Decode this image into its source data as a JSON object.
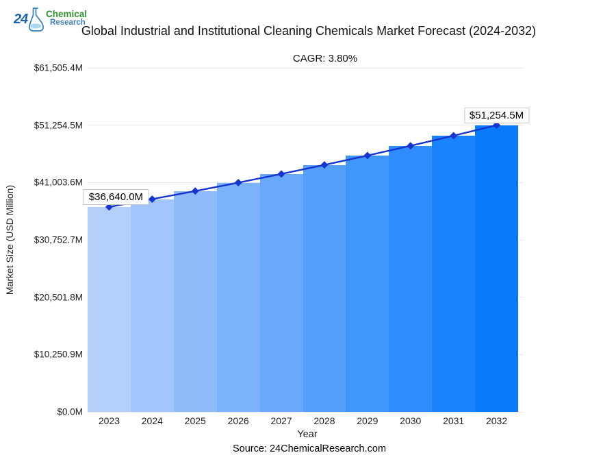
{
  "logo": {
    "number": "24",
    "line1": "Chemical",
    "line2": "Research"
  },
  "header": {
    "title": "Global Industrial and Institutional Cleaning Chemicals Market Forecast (2024-2032)",
    "subtitle": "CAGR: 3.80%"
  },
  "footer": {
    "source": "Source: 24ChemicalResearch.com"
  },
  "chart_data": {
    "type": "bar",
    "title": "Global Industrial and Institutional Cleaning Chemicals Market Forecast (2024-2032)",
    "subtitle": "CAGR: 3.80%",
    "xlabel": "Year",
    "ylabel": "Market Size (USD Million)",
    "categories": [
      "2023",
      "2024",
      "2025",
      "2026",
      "2027",
      "2028",
      "2029",
      "2030",
      "2031",
      "2032"
    ],
    "values": [
      36640.0,
      38032.3,
      39477.5,
      40977.7,
      42534.8,
      44151.2,
      45828.9,
      47570.4,
      49378.1,
      51254.5
    ],
    "overlay_line": true,
    "marker": "diamond",
    "ylim": [
      0,
      61505.4
    ],
    "yticks": {
      "values": [
        0,
        10250.9,
        20501.8,
        30752.7,
        41003.6,
        51254.5,
        61505.4
      ],
      "labels": [
        "$0.0M",
        "$10,250.9M",
        "$20,501.8M",
        "$30,752.7M",
        "$41,003.6M",
        "$51,254.5M",
        "$61,505.4M"
      ]
    },
    "bar_colors": [
      "#b5cffb",
      "#a2c5fb",
      "#8ebcfb",
      "#7bb2fb",
      "#68a9fb",
      "#549ffb",
      "#4196fb",
      "#2e8cfb",
      "#1a83fb",
      "#0779fb"
    ],
    "line_color": "#1634cf",
    "grid": true,
    "legend": false,
    "annotations": [
      {
        "index": 0,
        "text": "$36,640.0M"
      },
      {
        "index": 9,
        "text": "$51,254.5M"
      }
    ]
  }
}
